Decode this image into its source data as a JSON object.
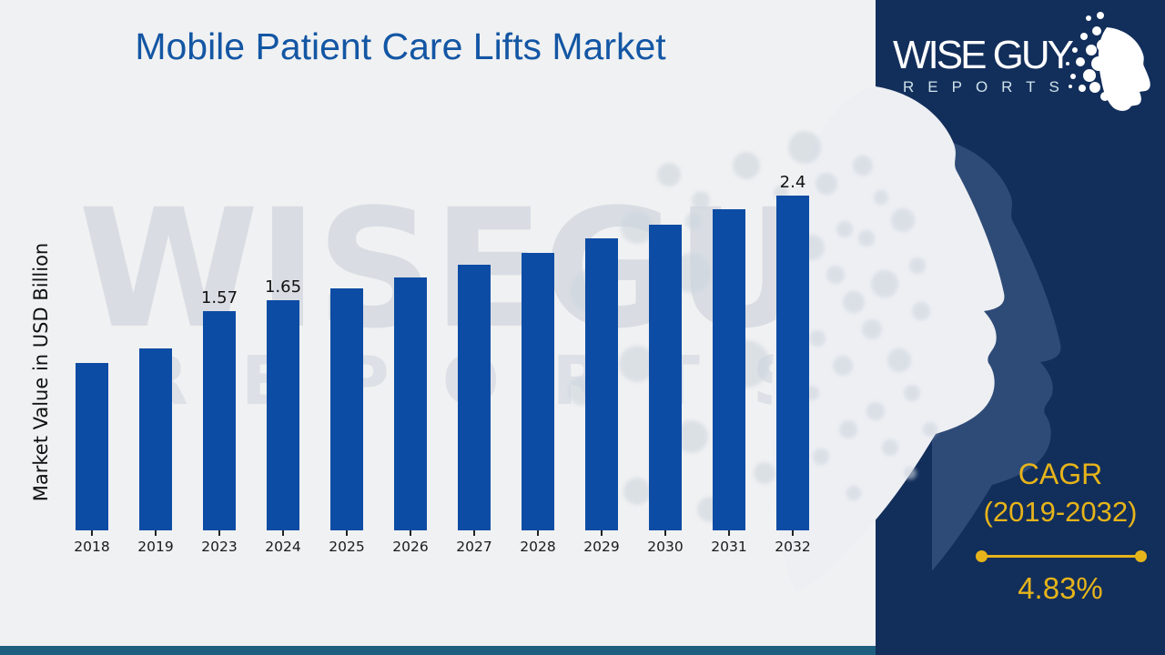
{
  "page": {
    "title": "Mobile Patient Care Lifts Market"
  },
  "watermark": {
    "line1": "WISEGUY",
    "line2": "REPORTS"
  },
  "logo": {
    "name_top": "WISE GUY",
    "name_bottom": "REPORTS"
  },
  "cagr": {
    "heading": "CAGR",
    "range": "(2019-2032)",
    "value": "4.83%"
  },
  "chart_data": {
    "type": "bar",
    "title": "Mobile Patient Care Lifts Market",
    "xlabel": "",
    "ylabel": "Market Value in USD Billion",
    "categories": [
      "2018",
      "2019",
      "2023",
      "2024",
      "2025",
      "2026",
      "2027",
      "2028",
      "2029",
      "2030",
      "2031",
      "2032"
    ],
    "values": [
      1.2,
      1.3,
      1.57,
      1.65,
      1.73,
      1.81,
      1.9,
      1.99,
      2.09,
      2.19,
      2.3,
      2.4
    ],
    "bar_labels": [
      "",
      "",
      "1.57",
      "1.65",
      "",
      "",
      "",
      "",
      "",
      "",
      "",
      "2.4"
    ],
    "ylim": [
      0,
      2.9
    ],
    "grid": false,
    "legend_position": "none",
    "bar_color": "#0d4ca4"
  },
  "colors": {
    "background": "#f0f1f2",
    "panel_navy": "#122e5b",
    "bar_blue": "#0d4ca4",
    "title_blue": "#1356a4",
    "accent_gold": "#e6b41a",
    "teal_strip": "#1e5f80",
    "watermark_gray": "#d9dde3",
    "head_light": "#edeff3",
    "head_shadow": "#2e4b77"
  }
}
